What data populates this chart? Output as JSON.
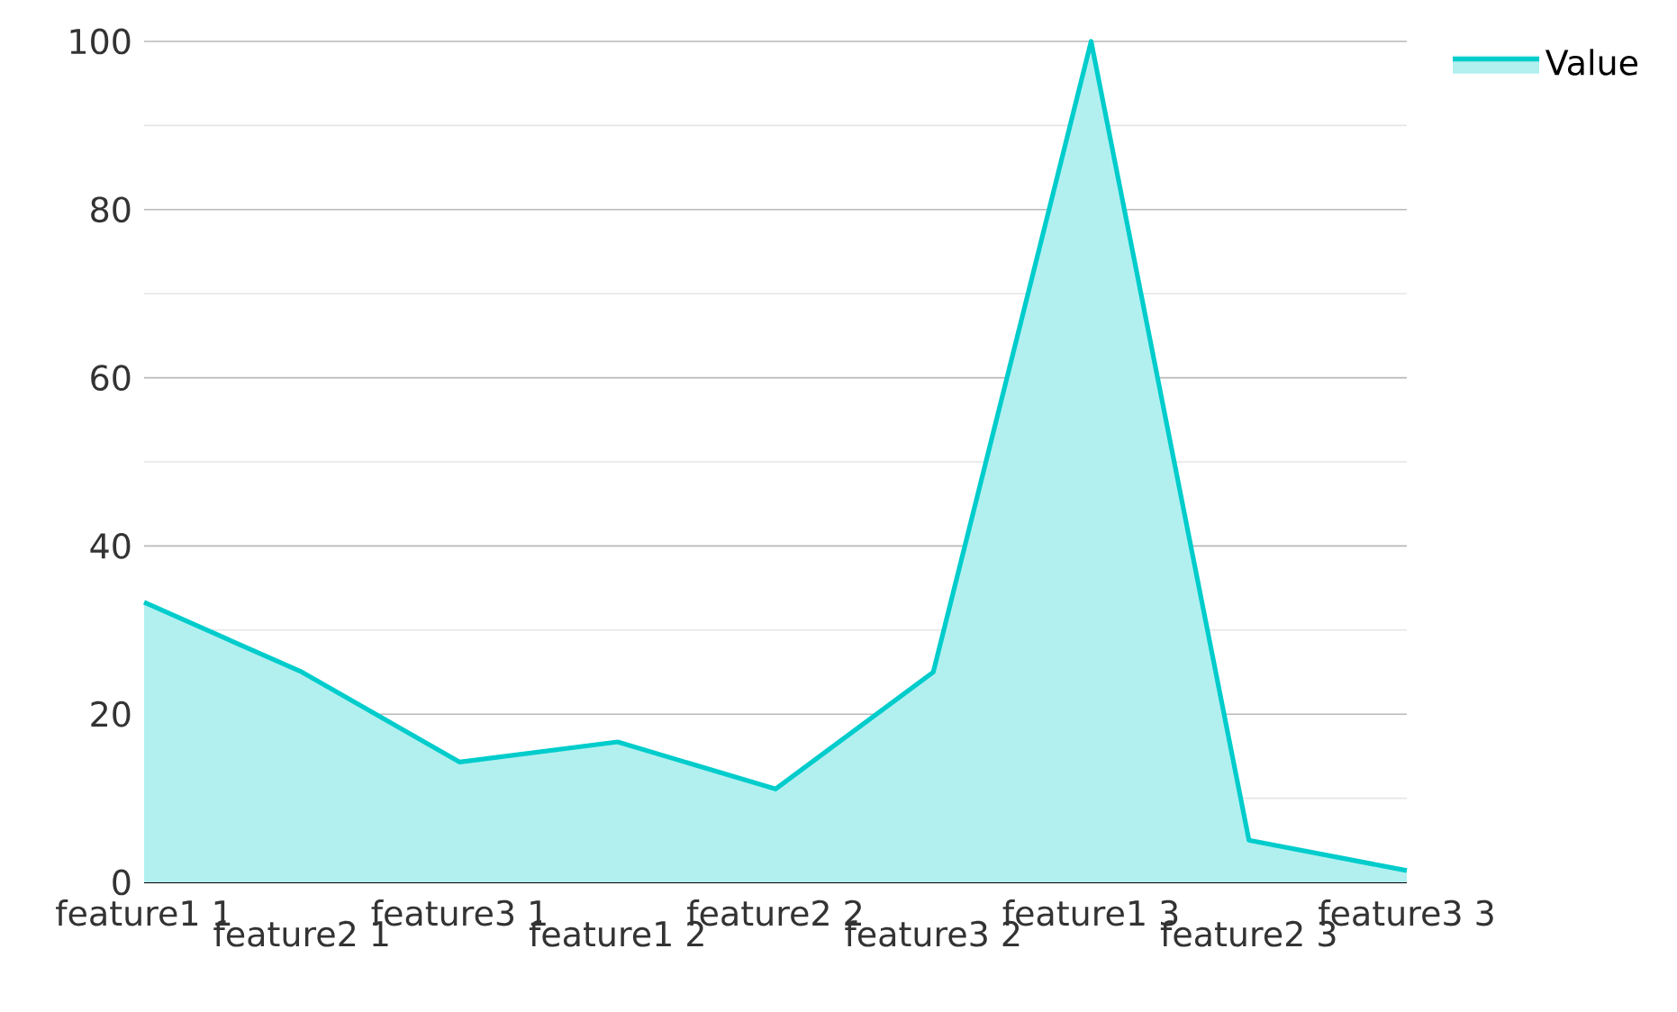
{
  "chart_data": {
    "type": "area",
    "categories": [
      "feature1 1",
      "feature2 1",
      "feature3 1",
      "feature1 2",
      "feature2 2",
      "feature3 2",
      "feature1 3",
      "feature2 3",
      "feature3 3"
    ],
    "series": [
      {
        "name": "Value",
        "color": "#00cccc",
        "values": [
          33.3,
          25,
          14.3,
          16.7,
          11.1,
          25,
          100,
          5,
          1.4
        ]
      }
    ],
    "ylim": [
      0,
      100
    ],
    "yticks": [
      0,
      {
        "value": 10,
        "label": null
      },
      20,
      {
        "value": 30,
        "label": null
      },
      40,
      {
        "value": 50,
        "label": null
      },
      60,
      {
        "value": 70,
        "label": null
      },
      80,
      {
        "value": 90,
        "label": null
      },
      100
    ],
    "grid": "y",
    "legend": "top right"
  }
}
